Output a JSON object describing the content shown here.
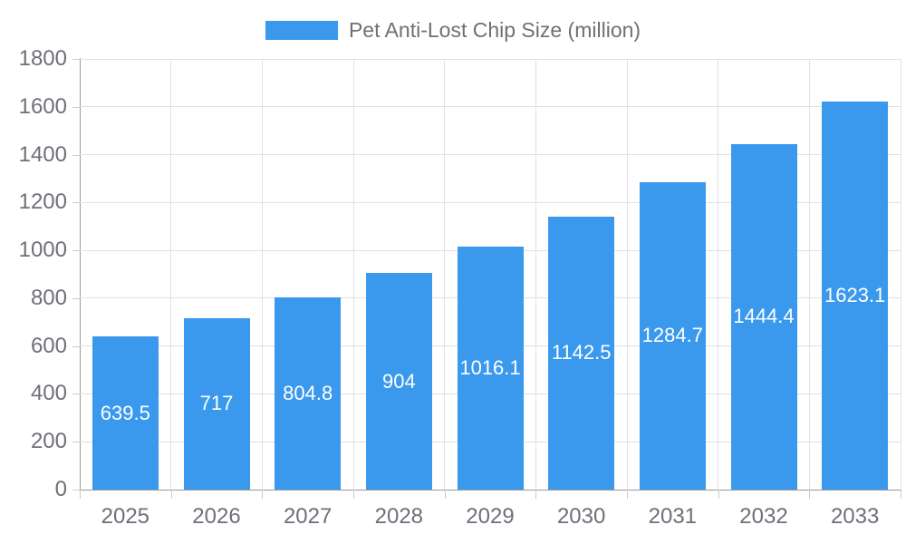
{
  "colors": {
    "bar-color": "#3A99EC",
    "grid-color": "#E0E0E6",
    "axis-color": "#999999",
    "tick-color": "#CCCCCC",
    "axis-text": "#6E7079",
    "legend-text": "#707070",
    "value-text": "#FFFFFF"
  },
  "chart_data": {
    "type": "bar",
    "title": "",
    "legend": "Pet Anti-Lost Chip Size (million)",
    "legend_position": "top-center",
    "categories": [
      "2025",
      "2026",
      "2027",
      "2028",
      "2029",
      "2030",
      "2031",
      "2032",
      "2033"
    ],
    "series": [
      {
        "name": "Pet Anti-Lost Chip Size (million)",
        "values": [
          639.5,
          717,
          804.8,
          904,
          1016.1,
          1142.5,
          1284.7,
          1444.4,
          1623.1
        ]
      }
    ],
    "bar_labels": [
      "639.5",
      "717",
      "804.8",
      "904",
      "1016.1",
      "1142.5",
      "1284.7",
      "1444.4",
      "1623.1"
    ],
    "bar_label_position": "inside-center",
    "xlabel": "",
    "ylabel": "",
    "ylim": [
      0,
      1800
    ],
    "yticks": [
      0,
      200,
      400,
      600,
      800,
      1000,
      1200,
      1400,
      1600,
      1800
    ],
    "grid": "horizontal-and-vertical"
  }
}
